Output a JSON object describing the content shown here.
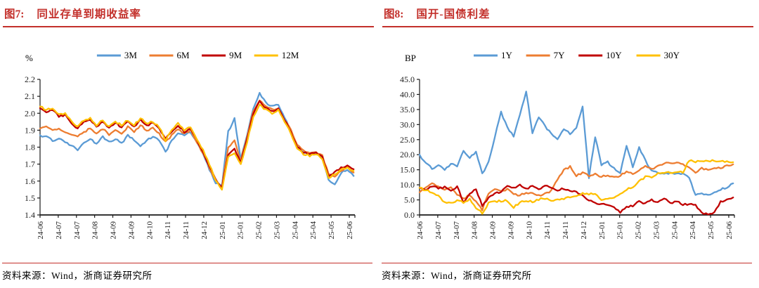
{
  "theme": {
    "accent": "#C3302B",
    "axis": "#1a1a1a",
    "text": "#000000",
    "tick_label": "#222222"
  },
  "panels": [
    {
      "header": {
        "label": "图7:",
        "title": "同业存单到期收益率"
      },
      "footer": {
        "source": "资料来源：Wind，浙商证券研究所"
      }
    },
    {
      "header": {
        "label": "图8:",
        "title": "国开-国债利差"
      },
      "footer": {
        "source": "资料来源：Wind，浙商证券研究所"
      }
    }
  ],
  "chart_data": [
    {
      "type": "line",
      "title": "同业存单到期收益率",
      "unit": "%",
      "ylim": [
        1.4,
        2.2
      ],
      "y_tick_step": 0.1,
      "y_tick_decimals": 1,
      "grid": false,
      "legend_position": "top",
      "x_months_span": 12.55,
      "x_tick_interval_months": 0.725,
      "x_step_months": 0.25,
      "x_tick_labels": [
        "24-06",
        "24-07",
        "24-07",
        "24-08",
        "24-09",
        "24-09",
        "24-10",
        "24-11",
        "24-11",
        "24-12",
        "25-01",
        "25-01",
        "25-02",
        "25-03",
        "25-04",
        "25-04",
        "25-05",
        "25-06"
      ],
      "series": [
        {
          "name": "3M",
          "color": "#5B9BD5",
          "values": [
            1.87,
            1.86,
            1.84,
            1.85,
            1.83,
            1.81,
            1.78,
            1.83,
            1.85,
            1.82,
            1.86,
            1.83,
            1.85,
            1.82,
            1.87,
            1.84,
            1.8,
            1.84,
            1.86,
            1.84,
            1.77,
            1.84,
            1.88,
            1.87,
            1.89,
            1.83,
            1.76,
            1.67,
            1.59,
            1.57,
            1.89,
            1.97,
            1.73,
            1.87,
            2.03,
            2.12,
            2.06,
            2.04,
            2.05,
            1.97,
            1.9,
            1.8,
            1.77,
            1.76,
            1.76,
            1.74,
            1.61,
            1.58,
            1.65,
            1.67,
            1.63
          ]
        },
        {
          "name": "6M",
          "color": "#ED7D31",
          "values": [
            1.91,
            1.92,
            1.9,
            1.91,
            1.89,
            1.87,
            1.86,
            1.89,
            1.91,
            1.88,
            1.91,
            1.87,
            1.9,
            1.88,
            1.92,
            1.89,
            1.93,
            1.9,
            1.91,
            1.88,
            1.83,
            1.87,
            1.91,
            1.88,
            1.9,
            1.83,
            1.76,
            1.68,
            1.6,
            1.57,
            1.8,
            1.84,
            1.72,
            1.86,
            2.01,
            2.08,
            2.04,
            2.02,
            2.03,
            1.96,
            1.9,
            1.81,
            1.78,
            1.77,
            1.77,
            1.75,
            1.64,
            1.63,
            1.66,
            1.68,
            1.65
          ]
        },
        {
          "name": "9M",
          "color": "#C00000",
          "values": [
            2.03,
            2.01,
            2.02,
            1.98,
            1.99,
            1.94,
            1.91,
            1.95,
            1.96,
            1.92,
            1.95,
            1.91,
            1.94,
            1.92,
            1.95,
            1.92,
            1.96,
            1.93,
            1.94,
            1.91,
            1.85,
            1.89,
            1.93,
            1.89,
            1.91,
            1.84,
            1.77,
            1.69,
            1.61,
            1.56,
            1.76,
            1.79,
            1.71,
            1.85,
            2.0,
            2.07,
            2.03,
            2.01,
            2.03,
            1.96,
            1.89,
            1.8,
            1.77,
            1.76,
            1.77,
            1.74,
            1.63,
            1.65,
            1.68,
            1.69,
            1.67
          ]
        },
        {
          "name": "12M",
          "color": "#FFC000",
          "values": [
            2.04,
            2.02,
            2.03,
            1.99,
            2.0,
            1.95,
            1.92,
            1.96,
            1.97,
            1.93,
            1.96,
            1.92,
            1.95,
            1.93,
            1.96,
            1.93,
            1.97,
            1.94,
            1.95,
            1.92,
            1.84,
            1.9,
            1.94,
            1.9,
            1.92,
            1.85,
            1.78,
            1.7,
            1.6,
            1.55,
            1.74,
            1.76,
            1.7,
            1.83,
            1.98,
            2.05,
            2.02,
            2.0,
            2.02,
            1.95,
            1.88,
            1.79,
            1.76,
            1.75,
            1.76,
            1.73,
            1.62,
            1.64,
            1.67,
            1.68,
            1.66
          ]
        }
      ]
    },
    {
      "type": "line",
      "title": "国开-国债利差",
      "unit": "BP",
      "ylim": [
        0,
        45
      ],
      "y_tick_step": 5,
      "y_tick_decimals": 1,
      "grid": false,
      "legend_position": "top",
      "x_months_span": 12.55,
      "x_tick_interval_months": 0.725,
      "x_step_months": 0.25,
      "x_tick_labels": [
        "24-06",
        "24-07",
        "24-07",
        "24-08",
        "24-09",
        "24-09",
        "24-10",
        "24-11",
        "24-11",
        "24-12",
        "25-01",
        "25-01",
        "25-02",
        "25-03",
        "25-04",
        "25-04",
        "25-05",
        "25-06"
      ],
      "series": [
        {
          "name": "1Y",
          "color": "#5B9BD5",
          "values": [
            20,
            17,
            15.5,
            16.5,
            15,
            17,
            16,
            21.5,
            19,
            21,
            13.5,
            17.5,
            26,
            34,
            29,
            26,
            33,
            41,
            27,
            32.5,
            29.5,
            27,
            25,
            28.5,
            27,
            29,
            36,
            12.5,
            26,
            16.5,
            17.5,
            15.5,
            14,
            23,
            16,
            22.5,
            18,
            14.5,
            14,
            13.5,
            14,
            13.5,
            13.8,
            12.5,
            6.5,
            7,
            6.8,
            7.5,
            8.5,
            9.2,
            10.5
          ]
        },
        {
          "name": "7Y",
          "color": "#ED7D31",
          "values": [
            7.5,
            9,
            10.5,
            9.5,
            8.5,
            9,
            6.5,
            5.5,
            6.5,
            4.5,
            1.8,
            7,
            8.5,
            8,
            8.5,
            7,
            6.5,
            7.5,
            7,
            6.5,
            7,
            8,
            12,
            15,
            16,
            13,
            14,
            13,
            13.5,
            12.8,
            13.2,
            12.6,
            13,
            14.5,
            13.5,
            15,
            16.2,
            15,
            16.5,
            17.2,
            17,
            17.2,
            16.8,
            16,
            14,
            15.5,
            14.8,
            15.8,
            15.5,
            16.2,
            16.8
          ]
        },
        {
          "name": "10Y",
          "color": "#C00000",
          "values": [
            9,
            8.5,
            9.5,
            8.8,
            9.2,
            8,
            9.5,
            4,
            7,
            8.5,
            3,
            5.5,
            7,
            7.8,
            9.5,
            9,
            9.8,
            8.8,
            9.4,
            8.5,
            9.7,
            9,
            8.3,
            8.8,
            8,
            7.5,
            6.5,
            5,
            4,
            3.5,
            3.6,
            2.5,
            1,
            2.8,
            3,
            4.5,
            3.8,
            5,
            4.3,
            5.5,
            4,
            4.5,
            3.5,
            3.6,
            3.4,
            0.5,
            0.3,
            0.6,
            4.5,
            5,
            5.8
          ]
        },
        {
          "name": "30Y",
          "color": "#FFC000",
          "values": [
            9,
            8.2,
            7.5,
            6.2,
            4.2,
            3.8,
            4.8,
            4.2,
            5.2,
            2.5,
            0.5,
            4,
            4.5,
            4.6,
            4.8,
            2.5,
            4.2,
            4.6,
            4.4,
            5.2,
            5.5,
            4.6,
            5,
            5.4,
            6,
            6.5,
            7,
            7,
            6.8,
            5,
            5.2,
            5.5,
            7,
            8.5,
            9.2,
            11.2,
            12.6,
            12.6,
            13.8,
            14,
            14,
            14.1,
            14.2,
            18.2,
            17.6,
            17.9,
            18,
            18,
            17.9,
            17.8,
            17.5
          ]
        }
      ]
    }
  ]
}
